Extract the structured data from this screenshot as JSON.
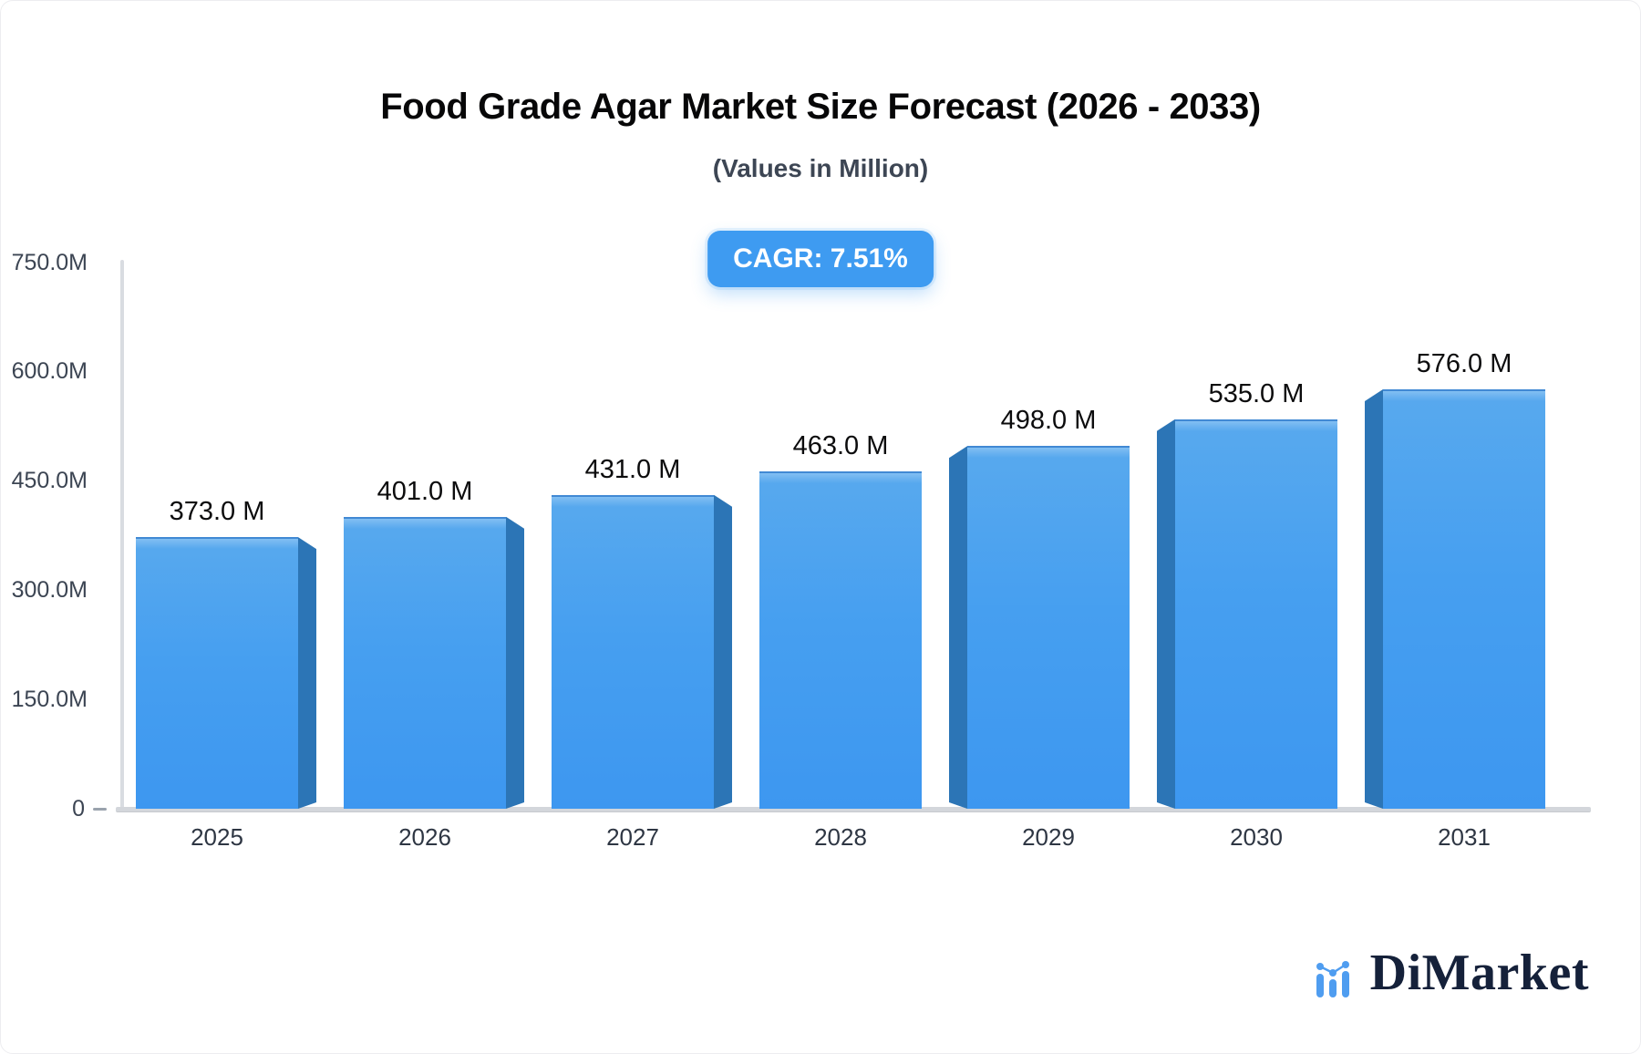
{
  "header": {
    "title": "Food Grade Agar Market Size Forecast (2026 - 2033)",
    "subtitle": "(Values in Million)",
    "cagr_badge": "CAGR: 7.51%"
  },
  "chart_data": {
    "type": "bar",
    "title": "Food Grade Agar Market Size Forecast (2026 - 2033)",
    "categories": [
      "2025",
      "2026",
      "2027",
      "2028",
      "2029",
      "2030",
      "2031"
    ],
    "values": [
      373.0,
      401.0,
      431.0,
      463.0,
      498.0,
      535.0,
      576.0
    ],
    "value_labels": [
      "373.0 M",
      "401.0 M",
      "431.0 M",
      "463.0 M",
      "498.0 M",
      "535.0 M",
      "576.0 M"
    ],
    "y_tick_labels": [
      "750.0M",
      "600.0M",
      "450.0M",
      "300.0M",
      "150.0M",
      "0"
    ],
    "y_tick_values": [
      750,
      600,
      450,
      300,
      150,
      0
    ],
    "ylim": [
      0,
      750
    ],
    "grid": false,
    "legend": "none",
    "unit": "Million",
    "colors": {
      "bar_face": "#459ff0",
      "bar_side": "#2c75b6",
      "badge_bg": "#3e9bf1",
      "axis": "#d3d6db"
    }
  },
  "logo": {
    "text": "DiMarket",
    "icon": "bar-chart-logo-icon",
    "icon_color": "#4f9df0",
    "text_color": "#15213a"
  }
}
